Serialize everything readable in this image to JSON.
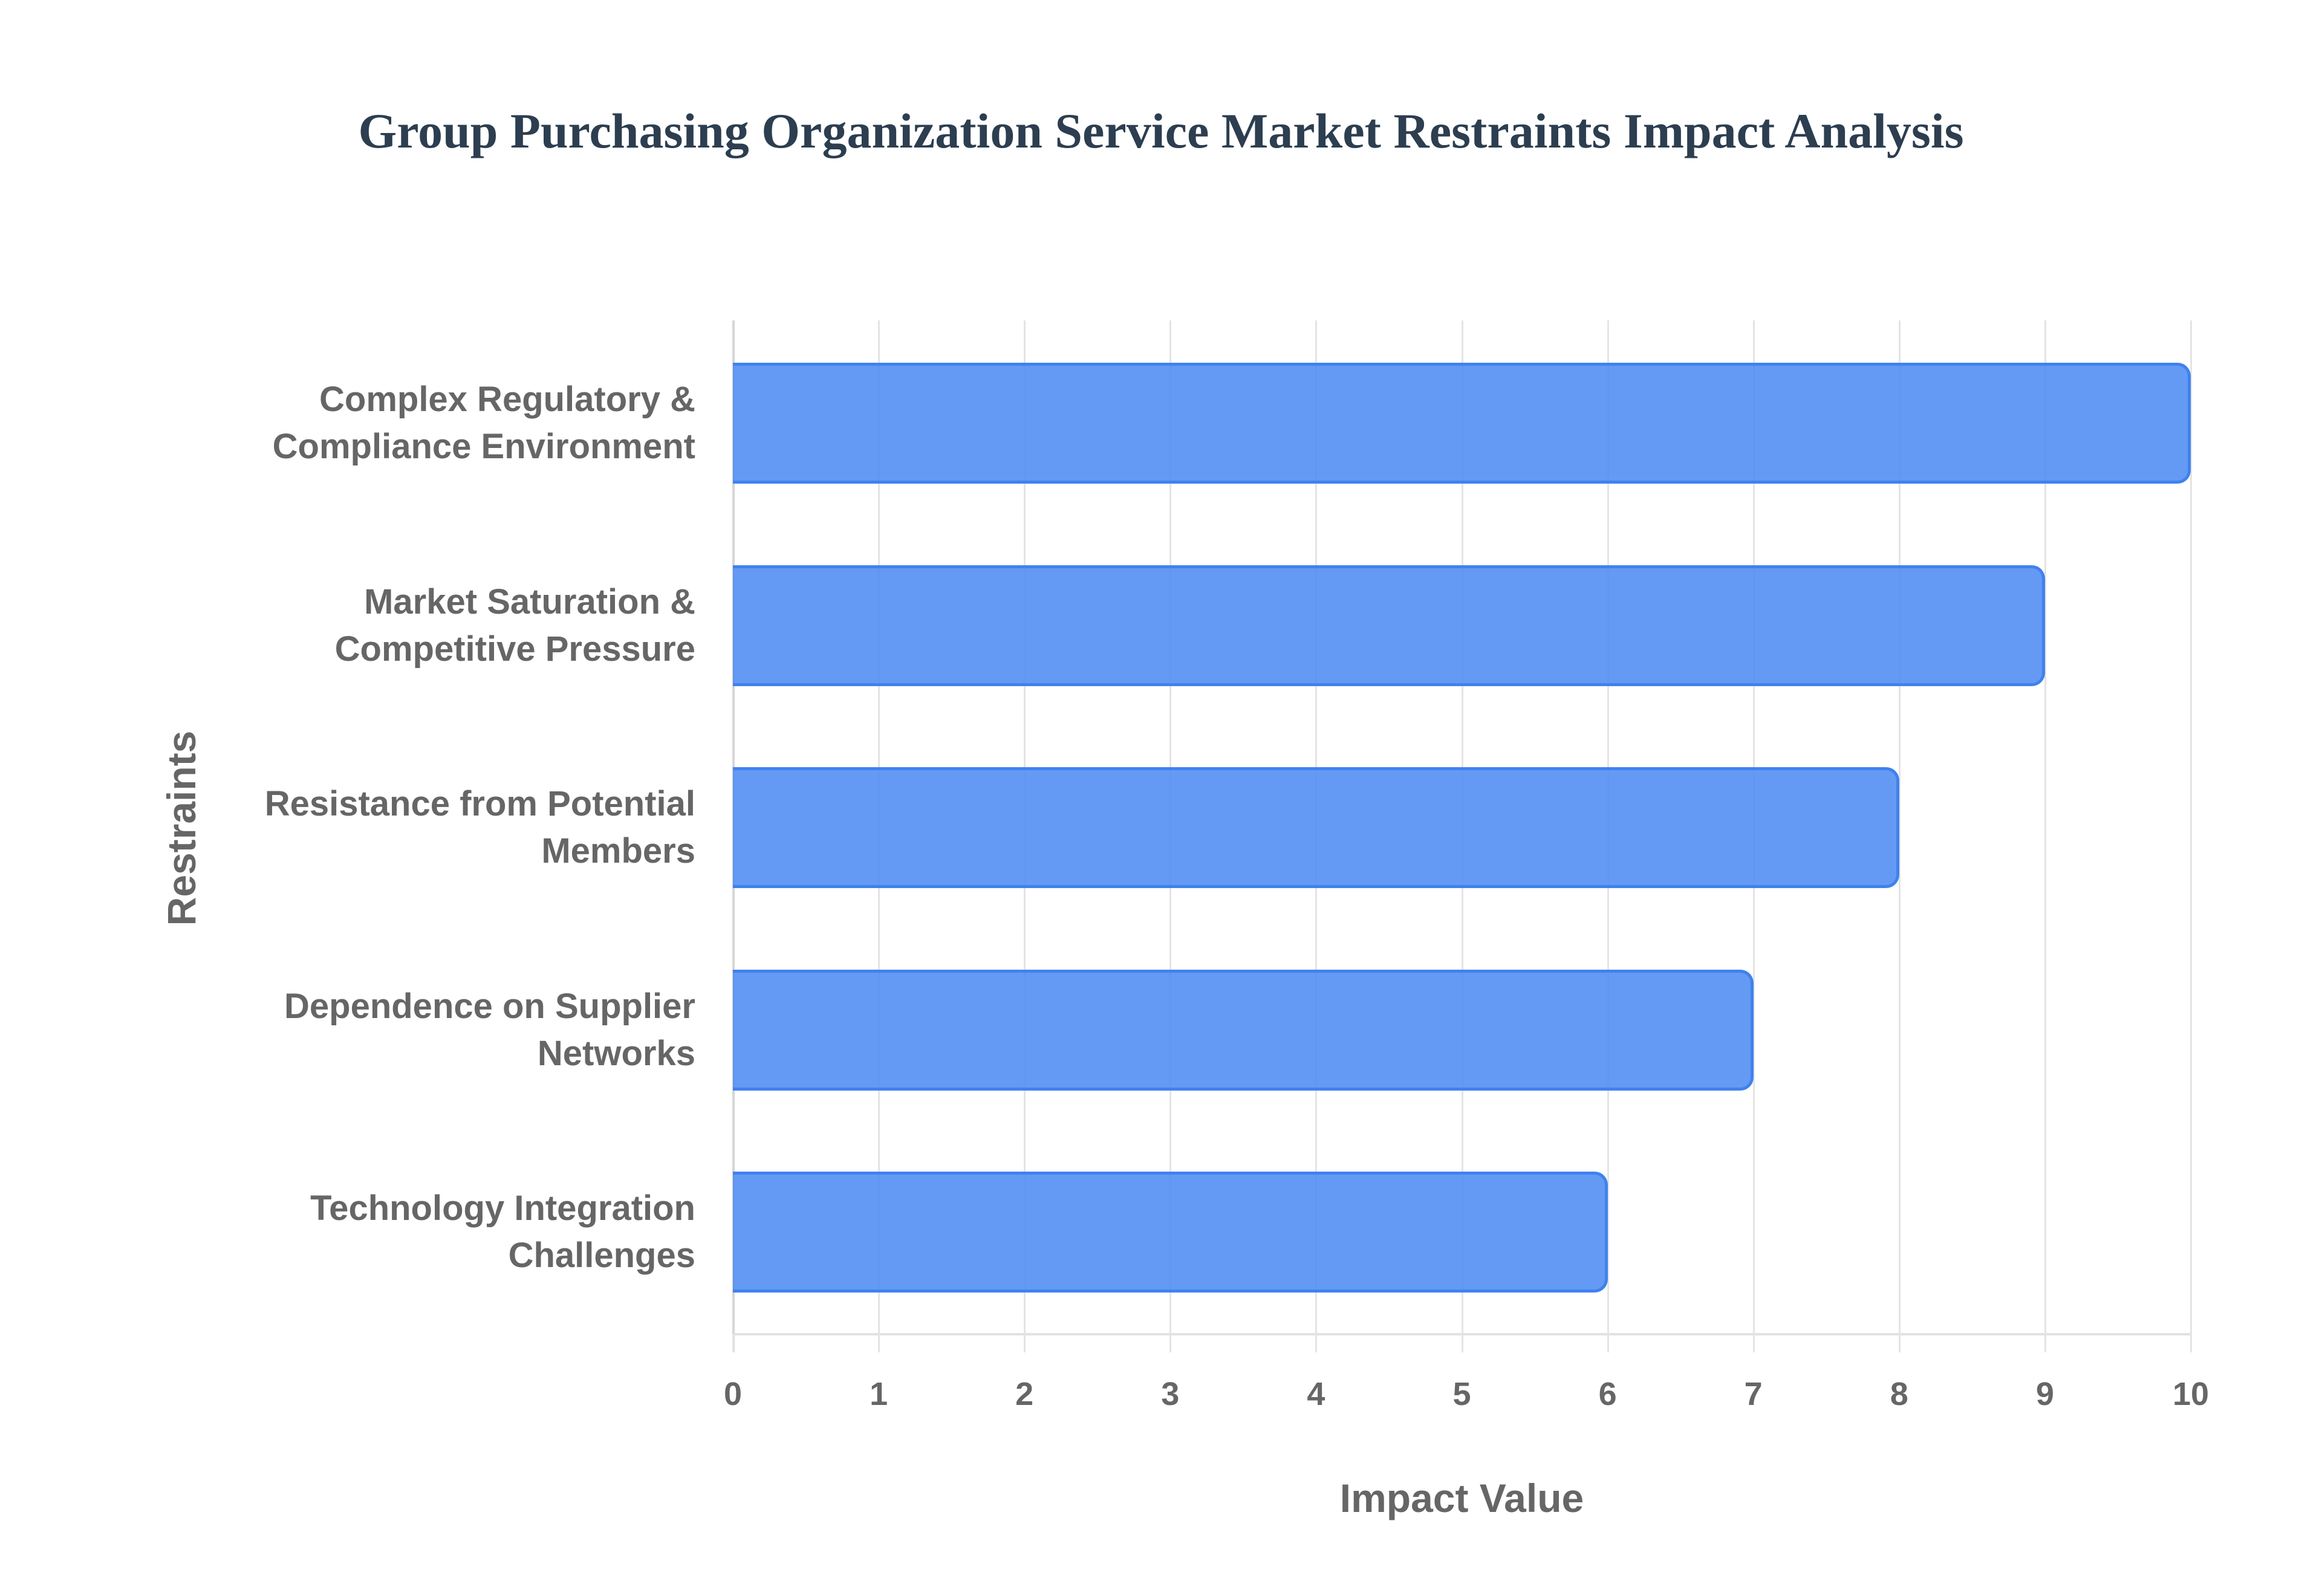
{
  "chart_data": {
    "type": "bar",
    "orientation": "horizontal",
    "title": "Group Purchasing Organization Service Market Restraints Impact Analysis",
    "xlabel": "Impact Value",
    "ylabel": "Restraints",
    "categories": [
      "Complex Regulatory & Compliance Environment",
      "Market Saturation & Competitive Pressure",
      "Resistance from Potential Members",
      "Dependence on Supplier Networks",
      "Technology Integration Challenges"
    ],
    "category_lines": [
      [
        "Complex Regulatory &",
        "Compliance Environment"
      ],
      [
        "Market Saturation &",
        "Competitive Pressure"
      ],
      [
        "Resistance from Potential",
        "Members"
      ],
      [
        "Dependence on Supplier",
        "Networks"
      ],
      [
        "Technology Integration",
        "Challenges"
      ]
    ],
    "values": [
      10,
      9,
      8,
      7,
      6
    ],
    "xlim": [
      0,
      10
    ],
    "xticks": [
      "0",
      "1",
      "2",
      "3",
      "4",
      "5",
      "6",
      "7",
      "8",
      "9",
      "10"
    ],
    "grid": true,
    "legend": null,
    "bar_color": "#5b95f2",
    "bar_border_color": "#3f82ee"
  }
}
